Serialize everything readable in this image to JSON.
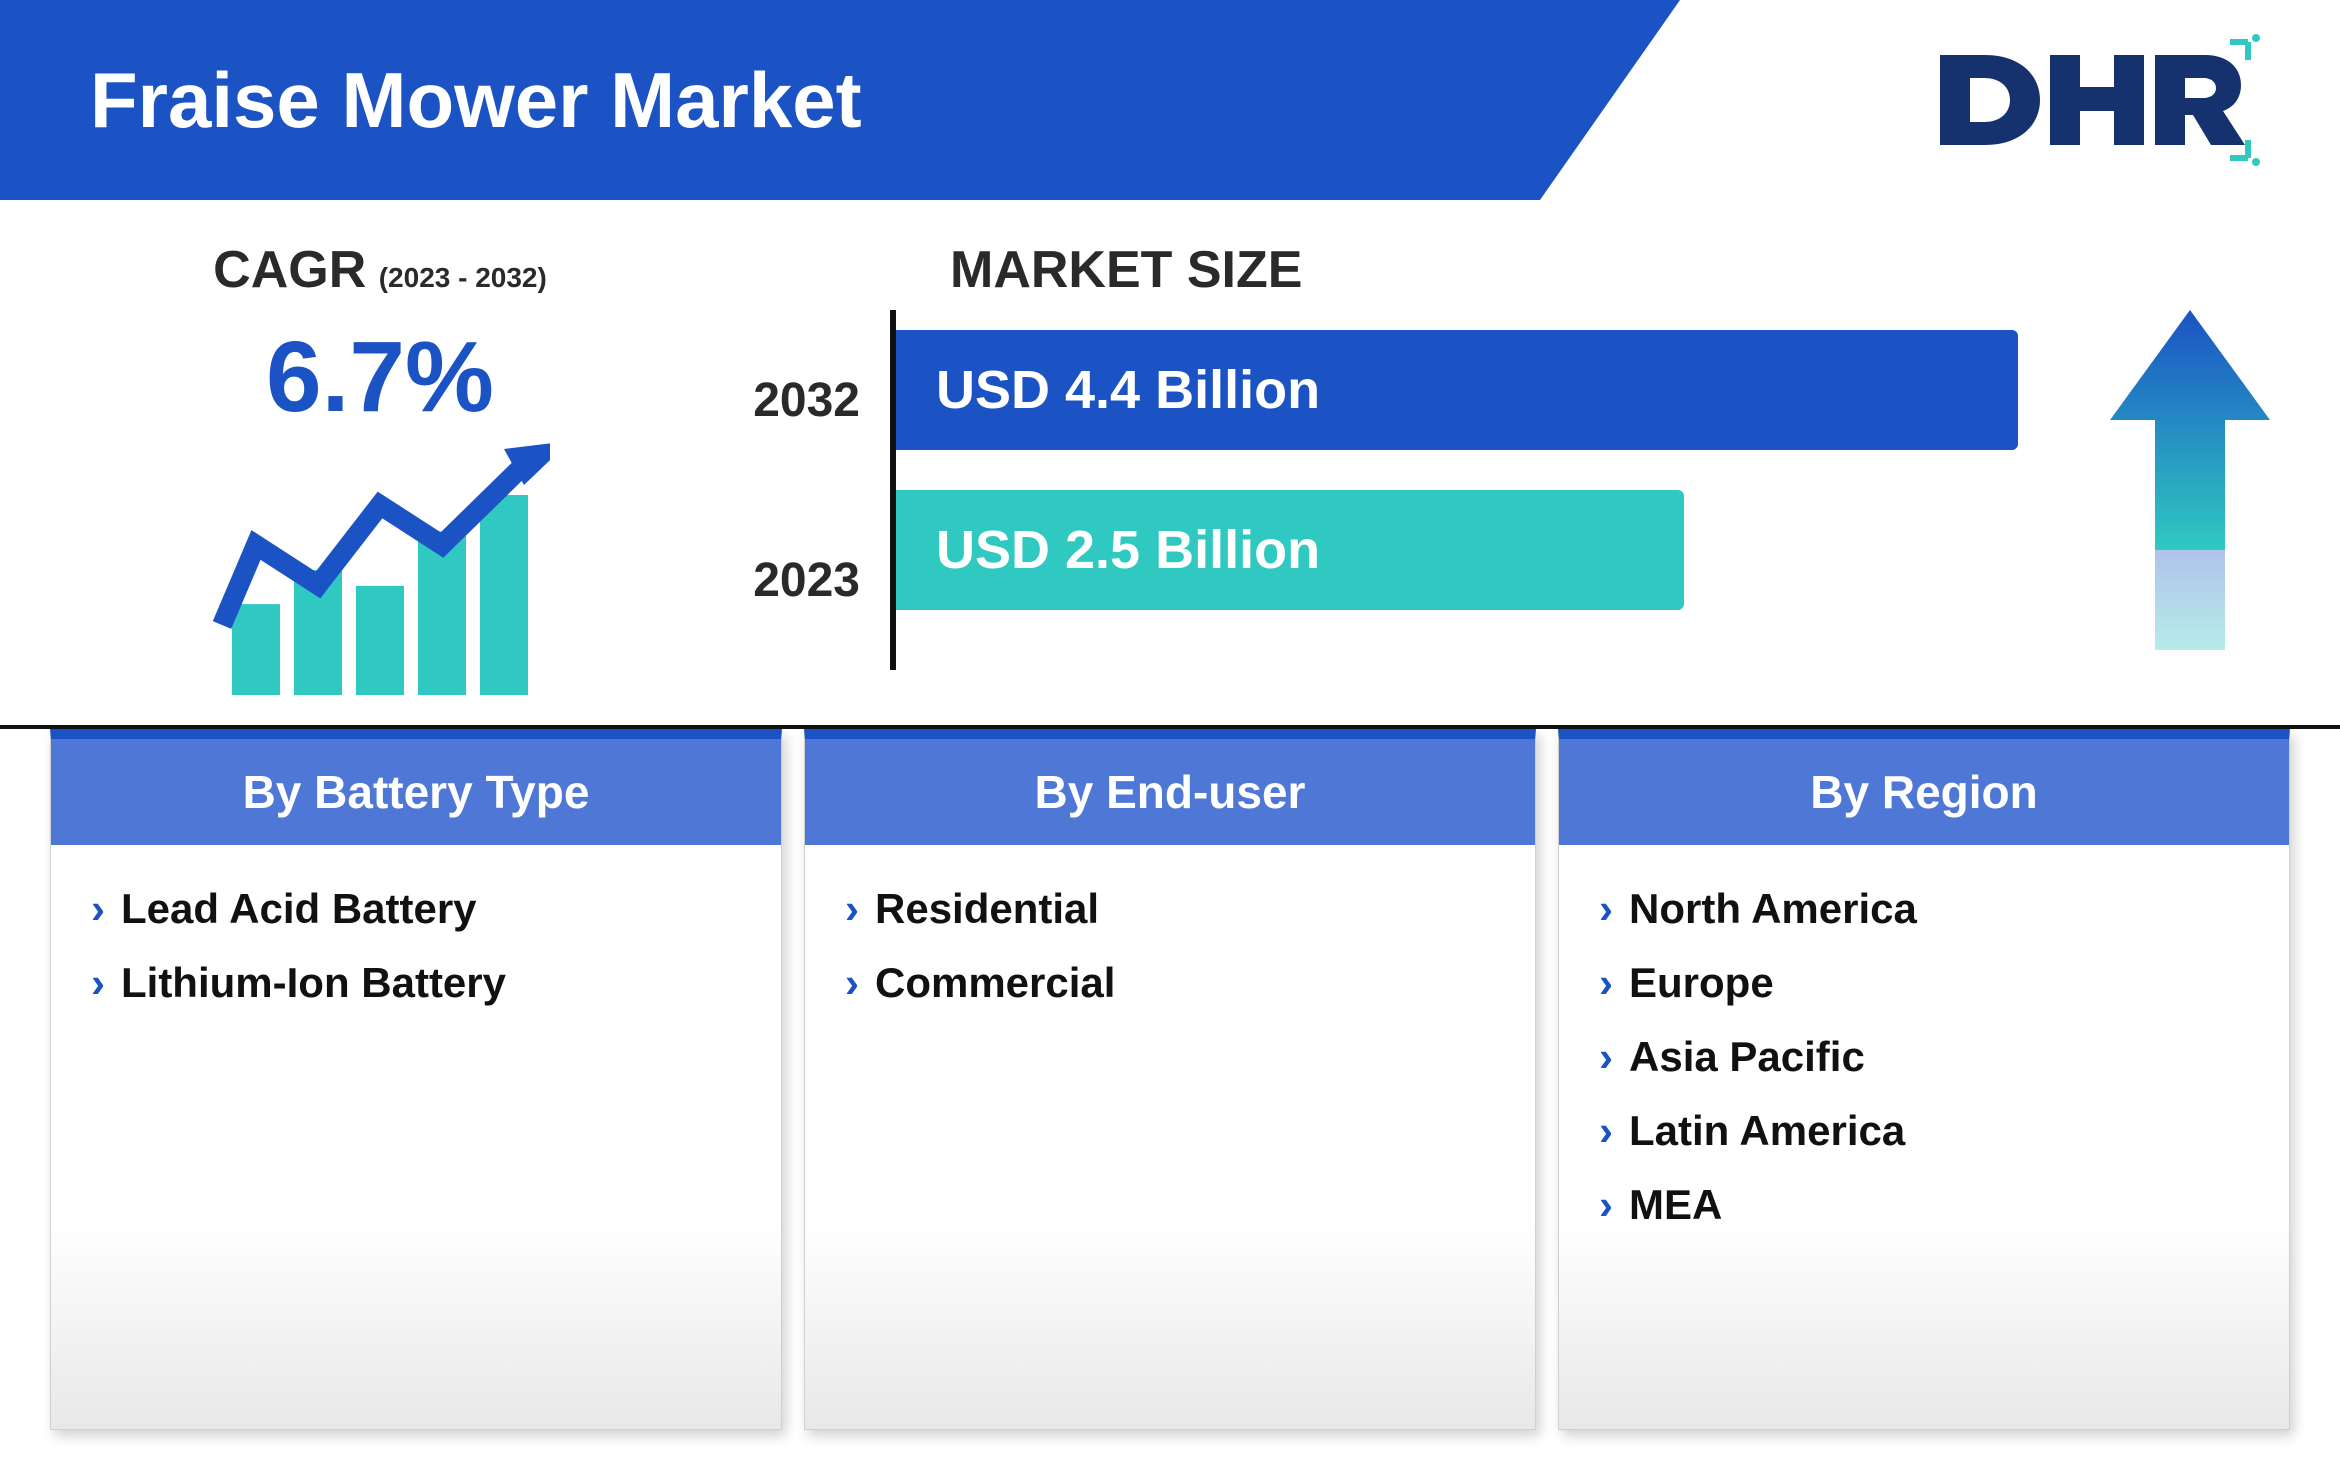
{
  "title": "Fraise Mower Market",
  "colors": {
    "primary_blue": "#1b53c4",
    "header_blue": "#1b53c4",
    "segment_head": "#4f78d6",
    "teal": "#2fc9c1",
    "teal_light": "#a7e9e4",
    "text_dark": "#2a2a2a",
    "black": "#111111",
    "white": "#ffffff",
    "card_shadow": "rgba(0,0,0,0.18)"
  },
  "cagr": {
    "label": "CAGR",
    "years": "(2023 - 2032)",
    "value": "6.7%",
    "value_color": "#1b53c4",
    "chart": {
      "type": "bar+line",
      "bar_color": "#2fc9c1",
      "line_color": "#1b53c4",
      "bar_values": [
        40,
        55,
        48,
        72,
        88
      ],
      "arrow": true
    }
  },
  "market_size": {
    "label": "MARKET SIZE",
    "axis_color": "#111111",
    "bars": [
      {
        "year": "2032",
        "label": "USD 4.4 Billion",
        "width_pct": 94,
        "color": "#1b53c4"
      },
      {
        "year": "2023",
        "label": "USD 2.5 Billion",
        "width_pct": 66,
        "color": "#2fc9c1"
      }
    ],
    "arrow_gradient_top": "#1b53c4",
    "arrow_gradient_bottom": "#2fc9c1"
  },
  "segments": [
    {
      "title": "By Battery Type",
      "items": [
        "Lead Acid Battery",
        "Lithium-Ion Battery"
      ]
    },
    {
      "title": "By End-user",
      "items": [
        "Residential",
        "Commercial"
      ]
    },
    {
      "title": "By Region",
      "items": [
        "North America",
        "Europe",
        "Asia Pacific",
        "Latin America",
        "MEA"
      ]
    }
  ],
  "logo": {
    "text": "DHR",
    "color": "#16326e"
  }
}
